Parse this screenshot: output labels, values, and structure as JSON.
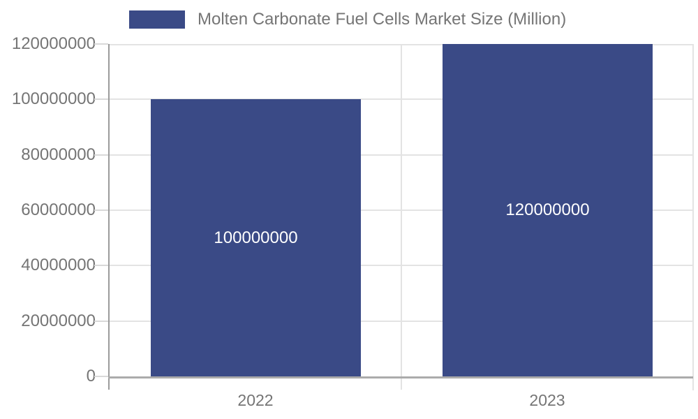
{
  "legend": {
    "label": "Molten Carbonate Fuel Cells Market Size (Million)"
  },
  "chart_data": {
    "type": "bar",
    "title": "Molten Carbonate Fuel Cells Market Size (Million)",
    "categories": [
      "2022",
      "2023"
    ],
    "values": [
      100000000,
      120000000
    ],
    "value_labels": [
      "100000000",
      "120000000"
    ],
    "series_name": "Molten Carbonate Fuel Cells Market Size (Million)",
    "xlabel": "",
    "ylabel": "",
    "ylim": [
      0,
      120000000
    ],
    "ytick_labels": [
      "0",
      "20000000",
      "40000000",
      "60000000",
      "80000000",
      "100000000",
      "120000000"
    ],
    "grid": true,
    "legend_position": "top",
    "bar_color": "#3a4a86",
    "text_color": "#757575",
    "gridline_color": "#e3e3e3",
    "value_label_color": "#ffffff"
  }
}
